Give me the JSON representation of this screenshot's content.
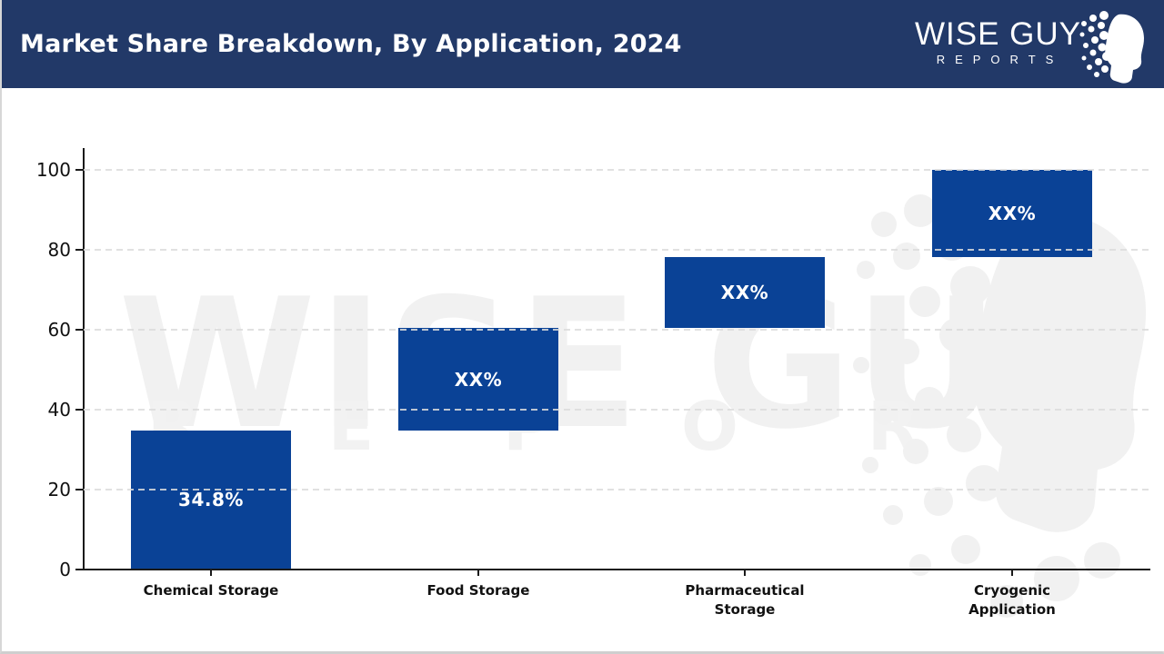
{
  "header": {
    "title": "Market Share Breakdown, By Application, 2024",
    "bg_color": "#223968",
    "logo": {
      "line1": "WISE GUY",
      "line2": "REPORTS"
    }
  },
  "watermark": {
    "line1": "WISE GUY",
    "line2": "R E P O R T S"
  },
  "chart_data": {
    "type": "bar",
    "subtype": "waterfall",
    "title": "Market Share Breakdown, By Application, 2024",
    "categories": [
      "Chemical Storage",
      "Food Storage",
      "Pharmaceutical Storage",
      "Cryogenic Application"
    ],
    "segments": [
      {
        "category": "Chemical Storage",
        "start": 0,
        "end": 34.8,
        "label": "34.8%"
      },
      {
        "category": "Food Storage",
        "start": 34.8,
        "end": 60.4,
        "label": "XX%"
      },
      {
        "category": "Pharmaceutical Storage",
        "start": 60.4,
        "end": 78.2,
        "label": "XX%"
      },
      {
        "category": "Cryogenic Application",
        "start": 78.2,
        "end": 100,
        "label": "XX%"
      }
    ],
    "yticks": [
      0,
      20,
      40,
      60,
      80,
      100
    ],
    "ylim": [
      0,
      100
    ],
    "xlabel": "",
    "ylabel": "",
    "grid": true,
    "grid_style": "dashed",
    "bar_color": "#0a4296",
    "value_label_color": "#ffffff",
    "legend": "none"
  }
}
